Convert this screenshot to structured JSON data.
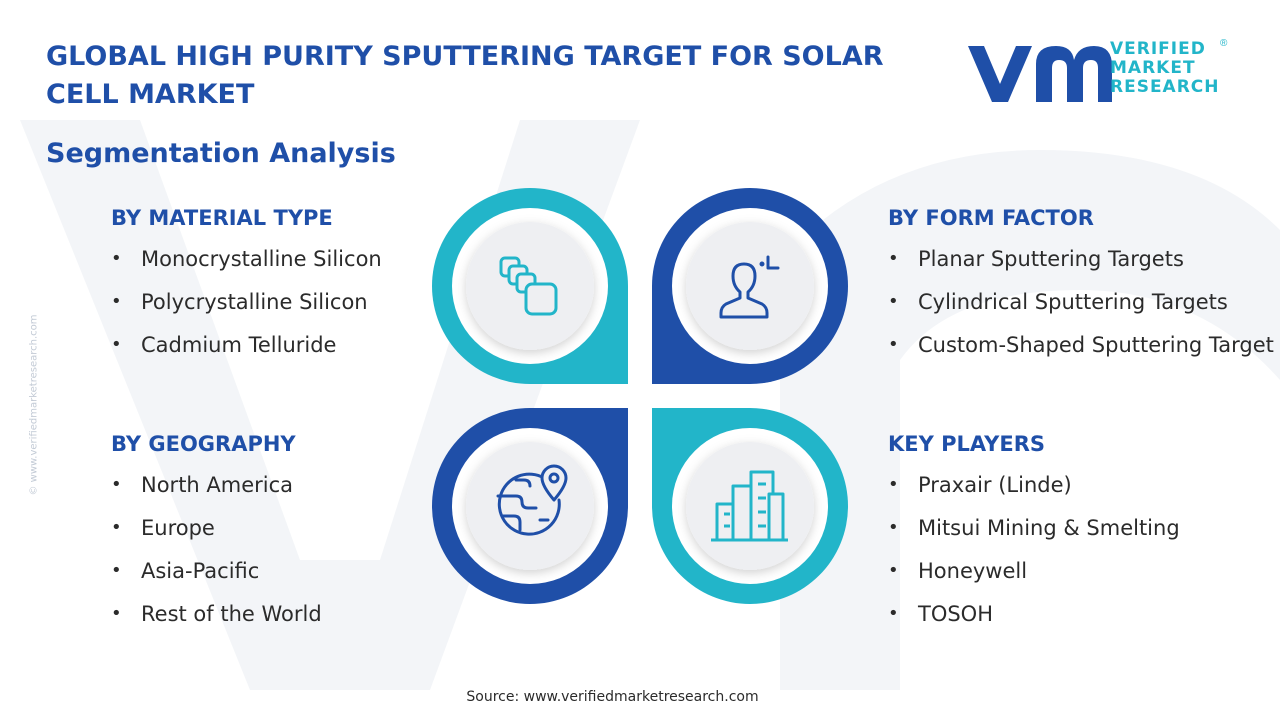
{
  "header": {
    "title": "GLOBAL HIGH PURITY SPUTTERING TARGET FOR SOLAR CELL MARKET",
    "subtitle": "Segmentation Analysis"
  },
  "logo": {
    "line1": "VERIFIED",
    "line2": "MARKET",
    "line3": "RESEARCH",
    "registered": "®"
  },
  "watermark_side": "© www.verifiedmarketresearch.com",
  "segments": {
    "material": {
      "title": "BY MATERIAL TYPE",
      "items": [
        "Monocrystalline Silicon",
        "Polycrystalline Silicon",
        "Cadmium Telluride"
      ]
    },
    "form": {
      "title": "BY FORM FACTOR",
      "items": [
        "Planar Sputtering Targets",
        "Cylindrical Sputtering Targets",
        "Custom-Shaped Sputtering Target"
      ]
    },
    "geography": {
      "title": "BY GEOGRAPHY",
      "items": [
        "North America",
        "Europe",
        "Asia-Pacific",
        "Rest of the World"
      ]
    },
    "players": {
      "title": "KEY PLAYERS",
      "items": [
        "Praxair (Linde)",
        "Mitsui Mining & Smelting",
        "Honeywell",
        "TOSOH"
      ]
    }
  },
  "icons": {
    "top_left": "stacked-blocks-icon",
    "top_right": "person-analysis-icon",
    "bottom_left": "globe-location-icon",
    "bottom_right": "city-buildings-icon"
  },
  "colors": {
    "dark_blue": "#1f4fa8",
    "teal": "#22b5c9",
    "text": "#2b2b2b"
  },
  "source": "Source: www.verifiedmarketresearch.com"
}
